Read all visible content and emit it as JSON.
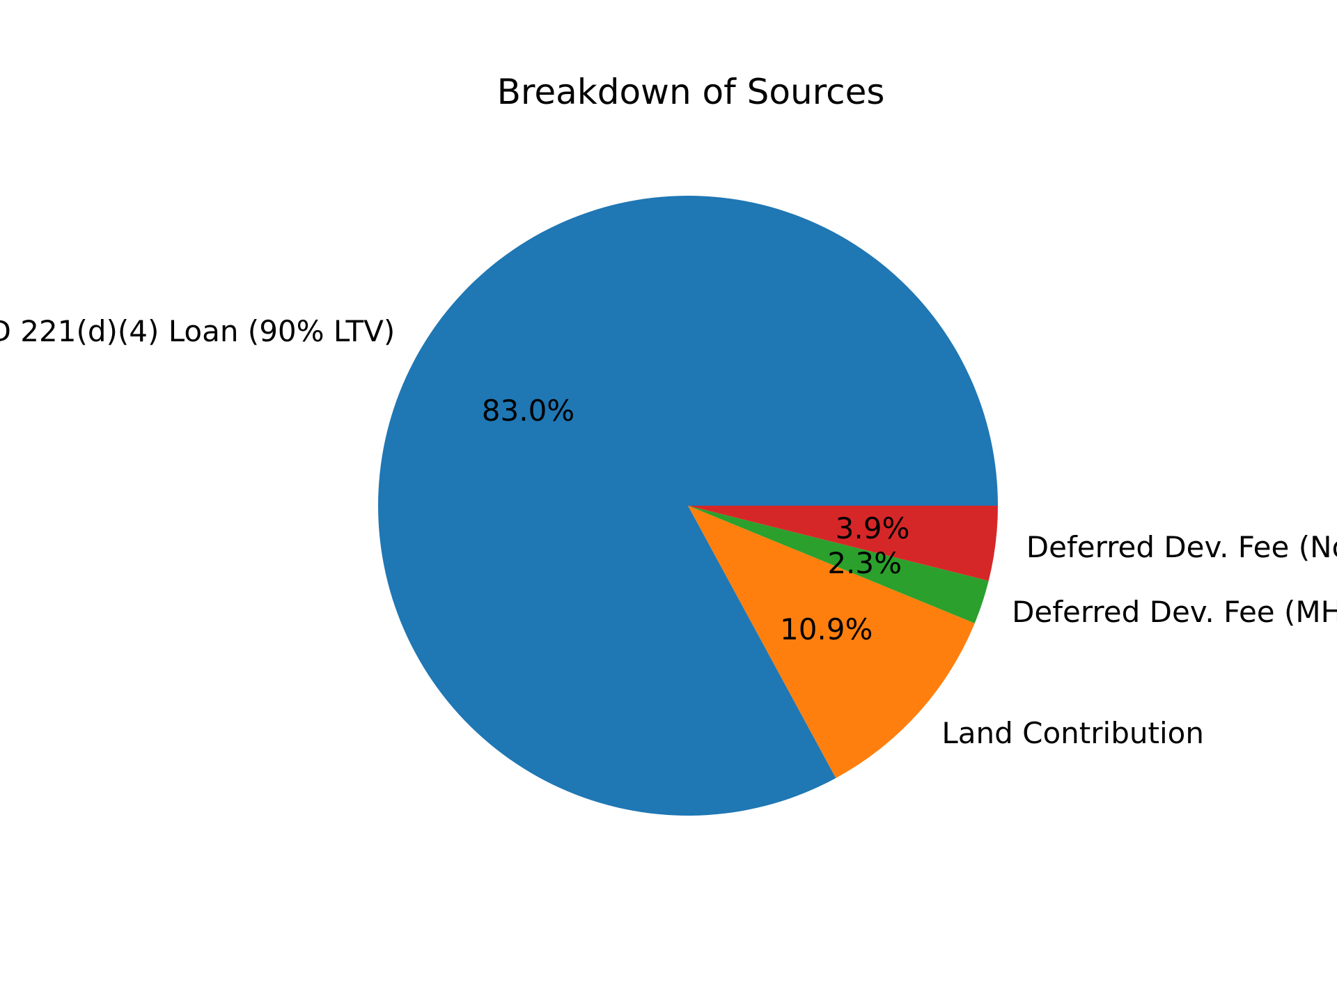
{
  "figure": {
    "background_color": "#ffffff",
    "text_color": "#000000"
  },
  "chart_data": {
    "type": "pie",
    "title": "Breakdown of Sources",
    "start_angle": 0,
    "direction": "counterclockwise",
    "label_distance": 1.1,
    "pct_distance": 0.6,
    "legend": "none",
    "slices": [
      {
        "label": "D 221(d)(4) Loan (90% LTV)",
        "value": 83.0,
        "pct_label": "83.0%",
        "color": "#1f77b4"
      },
      {
        "label": "Land Contribution",
        "value": 10.9,
        "pct_label": "10.9%",
        "color": "#ff7f0e"
      },
      {
        "label": "Deferred Dev. Fee (MH",
        "value": 2.3,
        "pct_label": "2.3%",
        "color": "#2ca02c"
      },
      {
        "label": "Deferred Dev. Fee (No",
        "value": 3.9,
        "pct_label": "3.9%",
        "color": "#d62728"
      }
    ]
  }
}
